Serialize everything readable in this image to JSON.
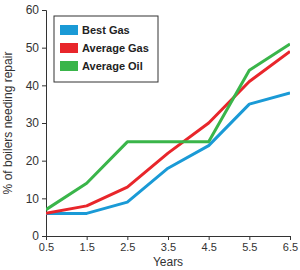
{
  "chart_data": {
    "type": "line",
    "x_label": "Years",
    "y_label": "% of boilers needing repair",
    "x": [
      0.5,
      1.5,
      2.5,
      3.5,
      4.5,
      5.5,
      6.5
    ],
    "series": [
      {
        "name": "Best Gas",
        "color": "#1a9ad6",
        "values": [
          6,
          6,
          9,
          18,
          24,
          35,
          38
        ]
      },
      {
        "name": "Average Gas",
        "color": "#e8262b",
        "values": [
          6,
          8,
          13,
          22,
          30,
          41,
          49
        ]
      },
      {
        "name": "Average Oil",
        "color": "#3ab54a",
        "values": [
          7,
          14,
          25,
          25,
          25,
          44,
          51
        ]
      }
    ],
    "xlim": [
      0.5,
      6.5
    ],
    "xticks": [
      0.5,
      1.5,
      2.5,
      3.5,
      4.5,
      5.5,
      6.5
    ],
    "ylim": [
      0,
      60
    ],
    "yticks": [
      0,
      10,
      20,
      30,
      40,
      50,
      60
    ],
    "grid": false,
    "legend": "upper left"
  }
}
